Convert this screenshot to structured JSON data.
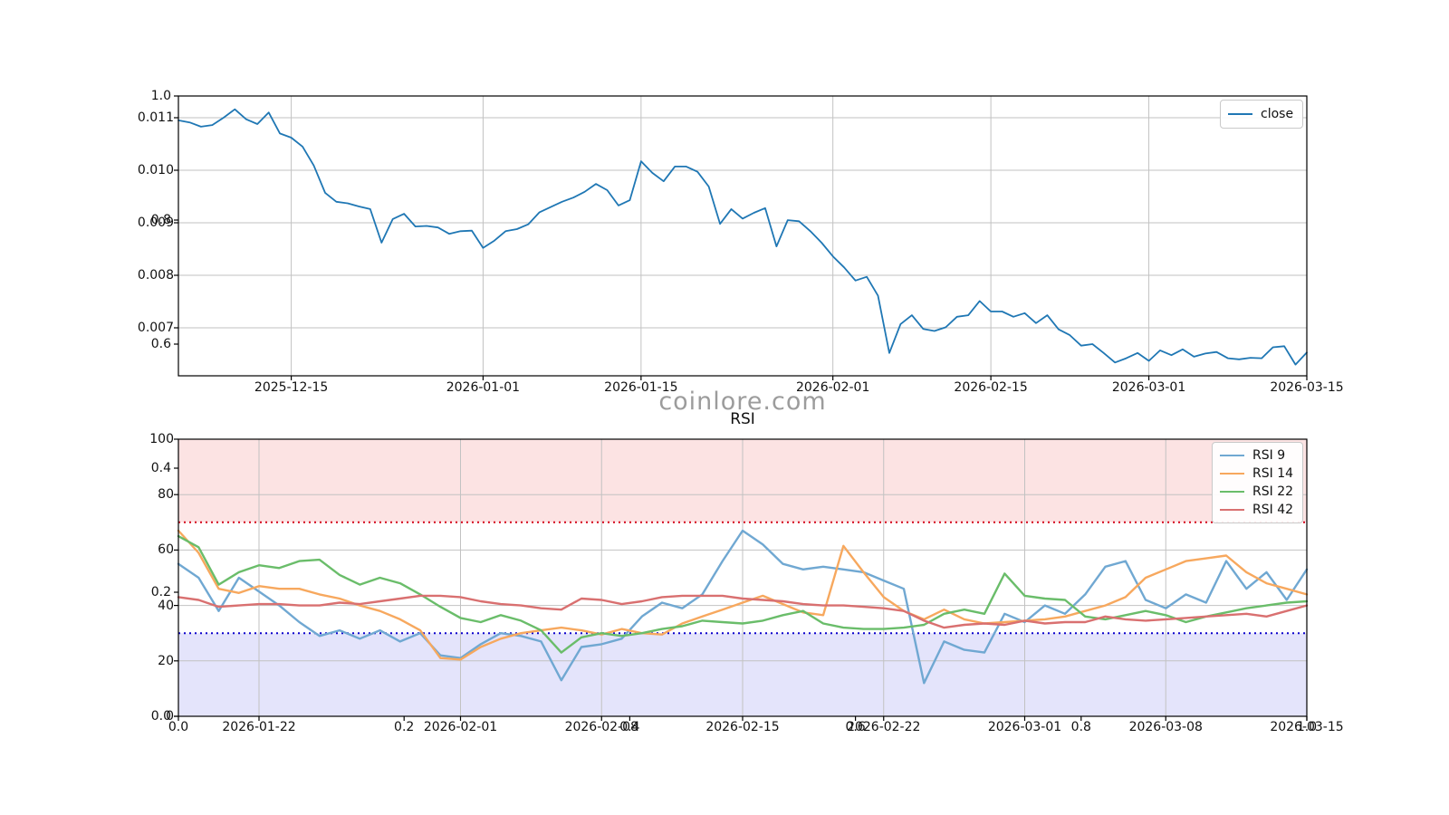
{
  "watermark": "coinlore.com",
  "price_chart": {
    "legend": [
      {
        "label": "close",
        "color": "#1f77b4"
      }
    ],
    "legend_position": "upper right",
    "y_tick_labels": [
      "0.011",
      "0.010",
      "0.009",
      "0.008",
      "0.007"
    ],
    "x_tick_labels": [
      "2025-12-15",
      "2026-01-01",
      "2026-01-15",
      "2026-02-01",
      "2026-02-15",
      "2026-03-01",
      "2026-03-15"
    ]
  },
  "rsi_chart": {
    "title": "RSI",
    "legend": [
      {
        "label": "RSI 9",
        "color": "#70a8d2"
      },
      {
        "label": "RSI 14",
        "color": "#f7a85e"
      },
      {
        "label": "RSI 22",
        "color": "#6abd6a"
      },
      {
        "label": "RSI 42",
        "color": "#d97070"
      }
    ],
    "legend_position": "upper right",
    "y_tick_labels": [
      "100",
      "80",
      "60",
      "40",
      "20",
      "0"
    ],
    "x_tick_labels": [
      "2026-01-22",
      "2026-02-01",
      "2026-02-08",
      "2026-02-15",
      "2026-02-22",
      "2026-03-01",
      "2026-03-08",
      "2026-03-15"
    ],
    "overbought_level": 70,
    "oversold_level": 30
  },
  "secondary_axis": {
    "y_tick_labels": [
      "1.0",
      "0.8",
      "0.6",
      "0.4",
      "0.2",
      "0.0"
    ],
    "x_tick_labels": [
      "0.0",
      "0.2",
      "0.4",
      "0.6",
      "0.8",
      "1.0"
    ]
  },
  "colors": {
    "close_line": "#1f77b4",
    "rsi9": "#70a8d2",
    "rsi14": "#f7a85e",
    "rsi22": "#6abd6a",
    "rsi42": "#d97070",
    "overbought_dotted": "#d40018",
    "oversold_dotted": "#0c00cc",
    "overbought_band": "#fce3e3",
    "oversold_band": "#e4e4fb",
    "grid": "#c2c2c2",
    "spine": "#000000",
    "watermark": "#9c9c9c"
  },
  "chart_data": [
    {
      "type": "line",
      "panel": "price",
      "x_first": "2025-12-05",
      "x_last": "2026-03-15",
      "frequency": "daily",
      "ylim": [
        0.006086,
        0.011414
      ],
      "grid": true,
      "x_ticks": [
        "2025-12-15",
        "2026-01-01",
        "2026-01-15",
        "2026-02-01",
        "2026-02-15",
        "2026-03-01",
        "2026-03-15"
      ],
      "y_ticks": [
        0.011,
        0.01,
        0.009,
        0.008,
        0.007
      ],
      "series": [
        {
          "name": "close",
          "color": "#1f77b4",
          "values": [
            0.01095,
            0.01091,
            0.01083,
            0.01086,
            0.011,
            0.01116,
            0.01097,
            0.01088,
            0.0111,
            0.0107,
            0.01062,
            0.01045,
            0.01009,
            0.00957,
            0.0094,
            0.00937,
            0.00931,
            0.00926,
            0.00862,
            0.00907,
            0.00917,
            0.00893,
            0.00894,
            0.00891,
            0.00879,
            0.00884,
            0.00885,
            0.00852,
            0.00866,
            0.00884,
            0.00888,
            0.00897,
            0.0092,
            0.0093,
            0.0094,
            0.00948,
            0.00959,
            0.00974,
            0.00962,
            0.00933,
            0.00943,
            0.01017,
            0.00995,
            0.00979,
            0.01007,
            0.01007,
            0.00997,
            0.00969,
            0.00898,
            0.00926,
            0.00908,
            0.00919,
            0.00928,
            0.00855,
            0.00905,
            0.00903,
            0.00884,
            0.00862,
            0.00836,
            0.00815,
            0.0079,
            0.00797,
            0.00761,
            0.00652,
            0.00707,
            0.00724,
            0.00698,
            0.00694,
            0.00701,
            0.00721,
            0.00724,
            0.00751,
            0.00731,
            0.00731,
            0.00721,
            0.00728,
            0.00709,
            0.00724,
            0.00697,
            0.00686,
            0.00666,
            0.00669,
            0.00652,
            0.00634,
            0.00642,
            0.00652,
            0.00637,
            0.00657,
            0.00648,
            0.00659,
            0.00645,
            0.00651,
            0.00654,
            0.00642,
            0.0064,
            0.00643,
            0.00642,
            0.00663,
            0.00665,
            0.0063,
            0.00653
          ]
        }
      ]
    },
    {
      "type": "line",
      "panel": "rsi",
      "title": "RSI",
      "x_first": "2026-01-18",
      "x_last": "2026-03-15",
      "frequency": "daily",
      "ylim": [
        0,
        100
      ],
      "grid": true,
      "overbought_level": 70,
      "oversold_level": 30,
      "x_ticks": [
        "2026-01-22",
        "2026-02-01",
        "2026-02-08",
        "2026-02-15",
        "2026-02-22",
        "2026-03-01",
        "2026-03-08",
        "2026-03-15"
      ],
      "y_ticks": [
        100,
        80,
        60,
        40,
        20,
        0
      ],
      "series": [
        {
          "name": "RSI 9",
          "color": "#70a8d2",
          "values": [
            55,
            50,
            38,
            50,
            45,
            40,
            34,
            29,
            31,
            28,
            31,
            27,
            30,
            22,
            21,
            26,
            30,
            29,
            27,
            13,
            25,
            26,
            28,
            36,
            41,
            39,
            44,
            56,
            67,
            62,
            55,
            53,
            54,
            53,
            52,
            49,
            46,
            12,
            27,
            24,
            23,
            37,
            34,
            40,
            37,
            44,
            54,
            56,
            42,
            39,
            44,
            41,
            56,
            46,
            52,
            42,
            53
          ]
        },
        {
          "name": "RSI 14",
          "color": "#f7a85e",
          "values": [
            67,
            59,
            46,
            44.5,
            47,
            46,
            46,
            44,
            42.5,
            40,
            38,
            35,
            31,
            21,
            20.5,
            25,
            28,
            30,
            31,
            32,
            31,
            29.5,
            31.5,
            30,
            29.5,
            33.5,
            36,
            38.5,
            41,
            43.5,
            40.5,
            37.5,
            36.5,
            61.5,
            52,
            43,
            38,
            35,
            38.5,
            35,
            33.5,
            34,
            34.5,
            35,
            36,
            38,
            40,
            43,
            50,
            53,
            56,
            57,
            58,
            52,
            48,
            46,
            44
          ]
        },
        {
          "name": "RSI 22",
          "color": "#6abd6a",
          "values": [
            65,
            61,
            47.5,
            52,
            54.5,
            53.5,
            56,
            56.5,
            51,
            47.5,
            50,
            48,
            44,
            39.5,
            35.5,
            34,
            36.5,
            34.5,
            31,
            23,
            28.5,
            30,
            29,
            30,
            31.5,
            32.5,
            34.5,
            34,
            33.5,
            34.5,
            36.5,
            38,
            33.5,
            32,
            31.5,
            31.5,
            32,
            33,
            37,
            38.5,
            37,
            51.5,
            43.5,
            42.5,
            42,
            36,
            35,
            36.5,
            38,
            36.5,
            34,
            36,
            37.5,
            39,
            40,
            41,
            41.5
          ]
        },
        {
          "name": "RSI 42",
          "color": "#d97070",
          "values": [
            43,
            42,
            39.5,
            40,
            40.5,
            40.5,
            40,
            40,
            41,
            40.5,
            41.5,
            42.5,
            43.5,
            43.5,
            43,
            41.5,
            40.5,
            40,
            39,
            38.5,
            42.5,
            42,
            40.5,
            41.5,
            43,
            43.5,
            43.5,
            43.5,
            42.5,
            42,
            41.5,
            40.5,
            40,
            40,
            39.5,
            39,
            38,
            34.5,
            32,
            33,
            33.5,
            33,
            34.5,
            33.5,
            34,
            34,
            36,
            35,
            34.5,
            35,
            35.5,
            36,
            36.5,
            37,
            36,
            38,
            40
          ]
        }
      ]
    }
  ]
}
